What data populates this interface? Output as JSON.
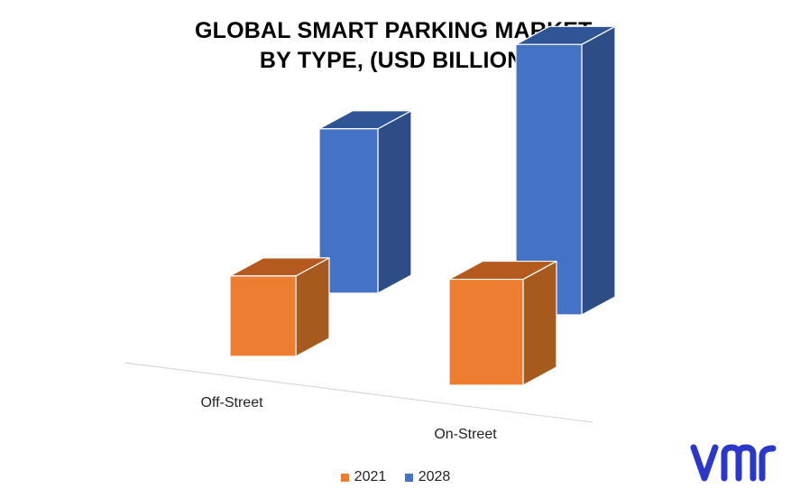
{
  "chart_data": {
    "type": "bar",
    "style": "3d-column",
    "title_lines": [
      "GLOBAL SMART PARKING MARKET,",
      "BY TYPE, (USD BILLION)"
    ],
    "categories": [
      "Off-Street",
      "On-Street"
    ],
    "series": [
      {
        "name": "2021",
        "values": [
          2.2,
          2.9
        ],
        "color": "#ED7D31"
      },
      {
        "name": "2028",
        "values": [
          4.5,
          7.4
        ],
        "color": "#4472C4"
      }
    ],
    "ylim": [
      0,
      8
    ],
    "grid": false,
    "axis_labels_visible": false,
    "legend_position": "bottom"
  },
  "colors": {
    "orange_front": "#ED7D31",
    "orange_top": "#B45A1F",
    "orange_side": "#A65A1E",
    "blue_front": "#4472C4",
    "blue_top": "#2F5597",
    "blue_side": "#2E4D86",
    "axis_line": "#D9D9D9",
    "logo": "#2B37C8"
  },
  "brand": {
    "logo_icon": "vmr-logo-icon"
  }
}
